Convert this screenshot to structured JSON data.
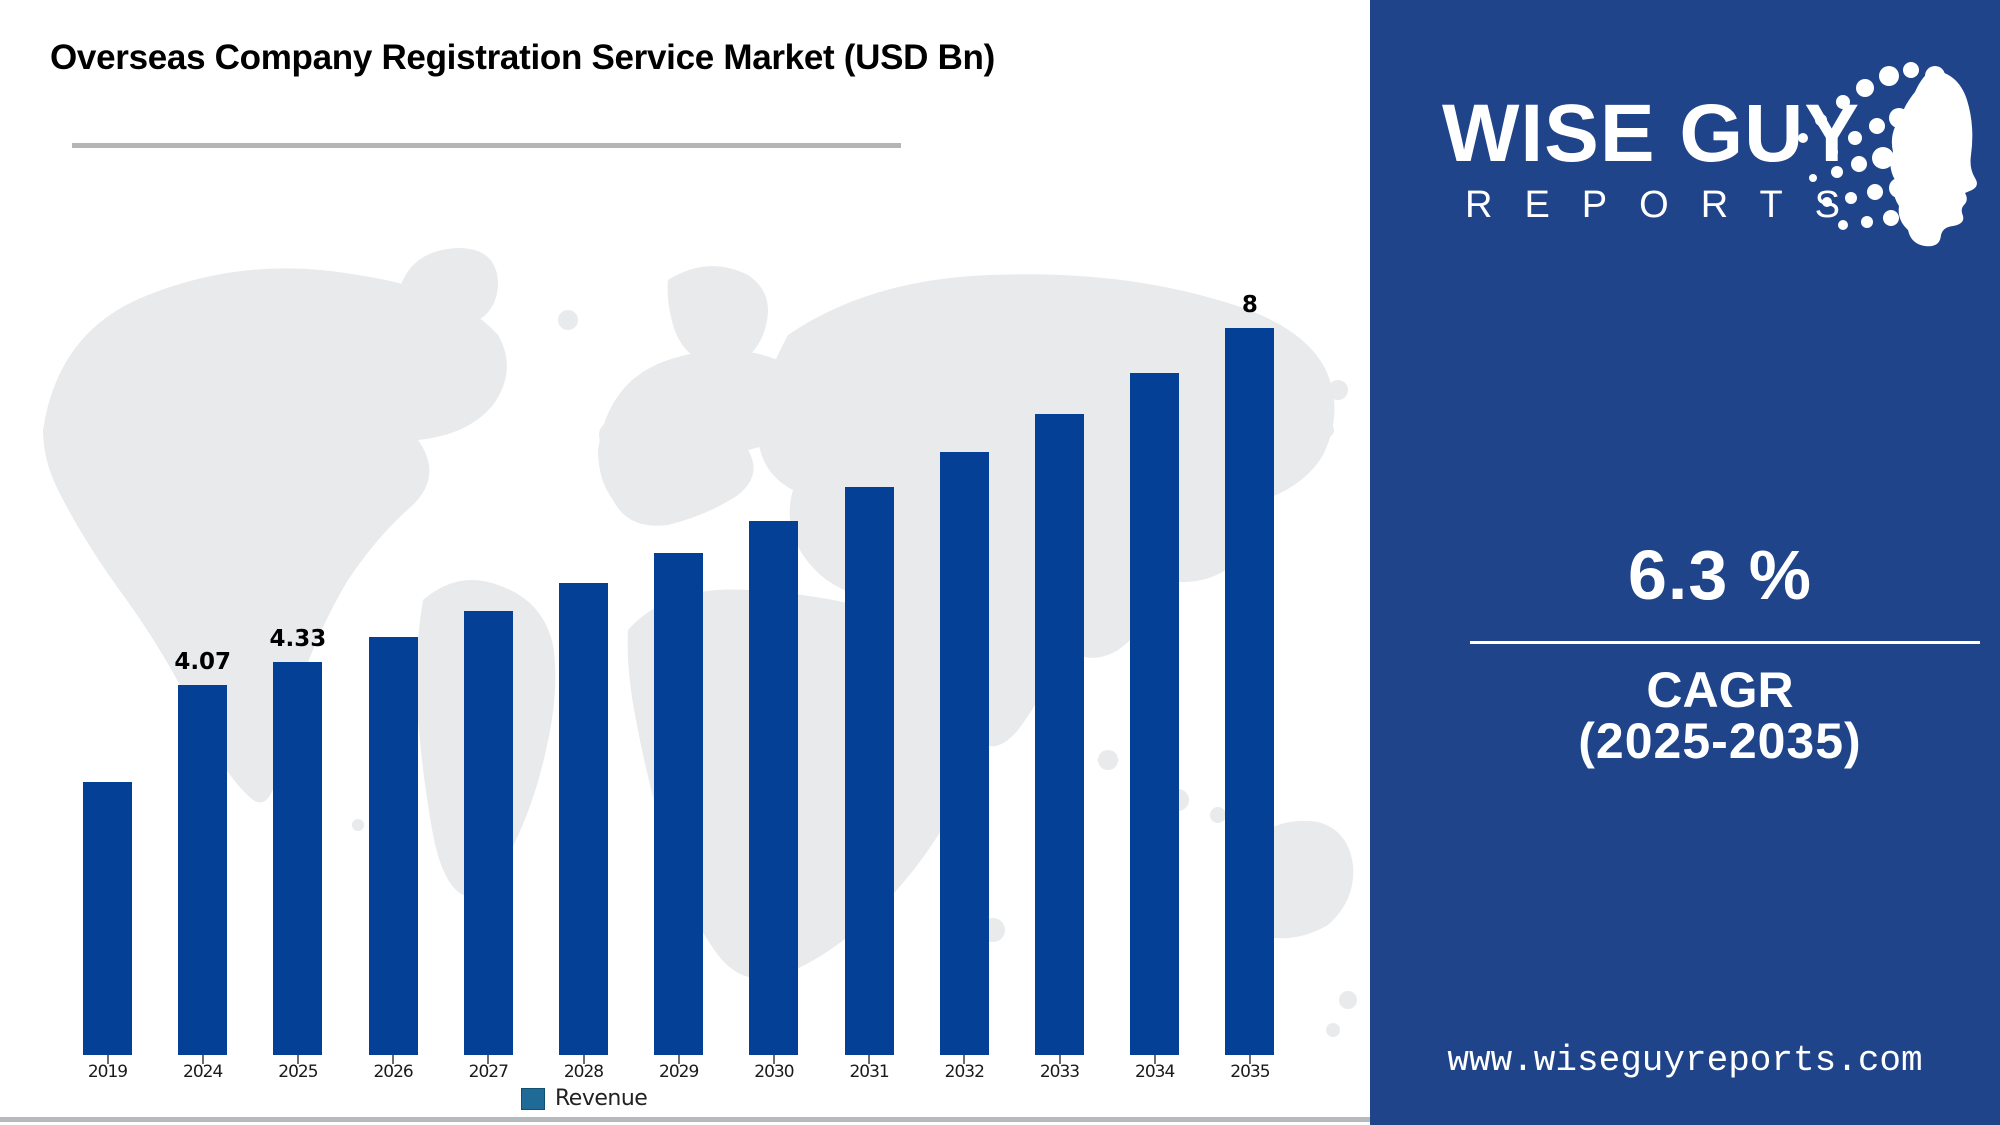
{
  "header": {
    "title": "Overseas Company Registration Service Market (USD Bn)"
  },
  "chart_data": {
    "type": "bar",
    "title": "Overseas Company Registration Service Market (USD Bn)",
    "unit": "USD Bn",
    "categories": [
      "2019",
      "2024",
      "2025",
      "2026",
      "2027",
      "2028",
      "2029",
      "2030",
      "2031",
      "2032",
      "2033",
      "2034",
      "2035"
    ],
    "values": [
      3.0,
      4.07,
      4.33,
      4.6,
      4.89,
      5.2,
      5.53,
      5.88,
      6.25,
      6.64,
      7.06,
      7.51,
      8
    ],
    "data_labels": {
      "2024": "4.07",
      "2025": "4.33",
      "2035": "8"
    },
    "legend": [
      "Revenue"
    ],
    "legend_position": "bottom-center",
    "bar_color": "#044096",
    "legend_swatch_color": "#1f6a96",
    "ylim": [
      0,
      8.6
    ],
    "gridlines": false,
    "background_watermark": "world-map"
  },
  "sidebar": {
    "logo_line1": "WISE GUY",
    "logo_line2": "REPORTS",
    "cagr_value": "6.3 %",
    "cagr_label": "CAGR",
    "cagr_period": "(2025-2035)",
    "website": "www.wiseguyreports.com",
    "background_color": "#1f4489",
    "text_color": "#ffffff"
  }
}
